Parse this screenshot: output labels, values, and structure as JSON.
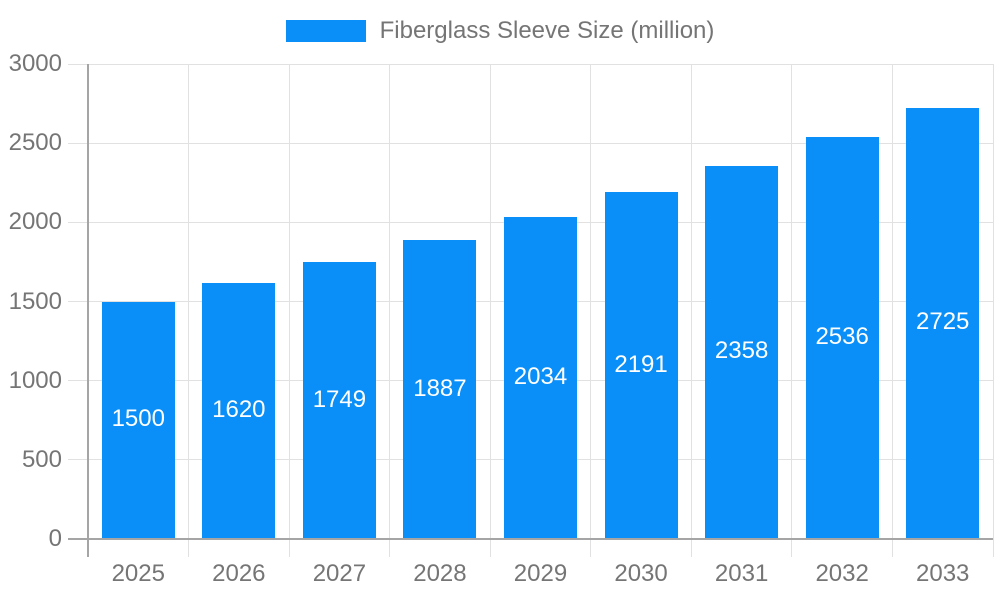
{
  "legend": {
    "label": "Fiberglass Sleeve Size (million)"
  },
  "chart_data": {
    "type": "bar",
    "title": "",
    "categories": [
      "2025",
      "2026",
      "2027",
      "2028",
      "2029",
      "2030",
      "2031",
      "2032",
      "2033"
    ],
    "series": [
      {
        "name": "Fiberglass Sleeve Size (million)",
        "values": [
          1500,
          1620,
          1749,
          1887,
          2034,
          2191,
          2358,
          2536,
          2725
        ]
      }
    ],
    "xlabel": "",
    "ylabel": "",
    "ylim": [
      0,
      3000
    ],
    "ytick_step": 500,
    "yticks": [
      "0",
      "500",
      "1000",
      "1500",
      "2000",
      "2500",
      "3000"
    ],
    "grid": true,
    "legend_position": "top",
    "value_labels": "inside-middle",
    "colors": {
      "bar": "#0a8ff9",
      "value_label": "#ffffff",
      "axis_text": "#757575",
      "gridline": "#e1e1e1",
      "axis_line": "#a5a5a5",
      "background": "#ffffff"
    }
  }
}
